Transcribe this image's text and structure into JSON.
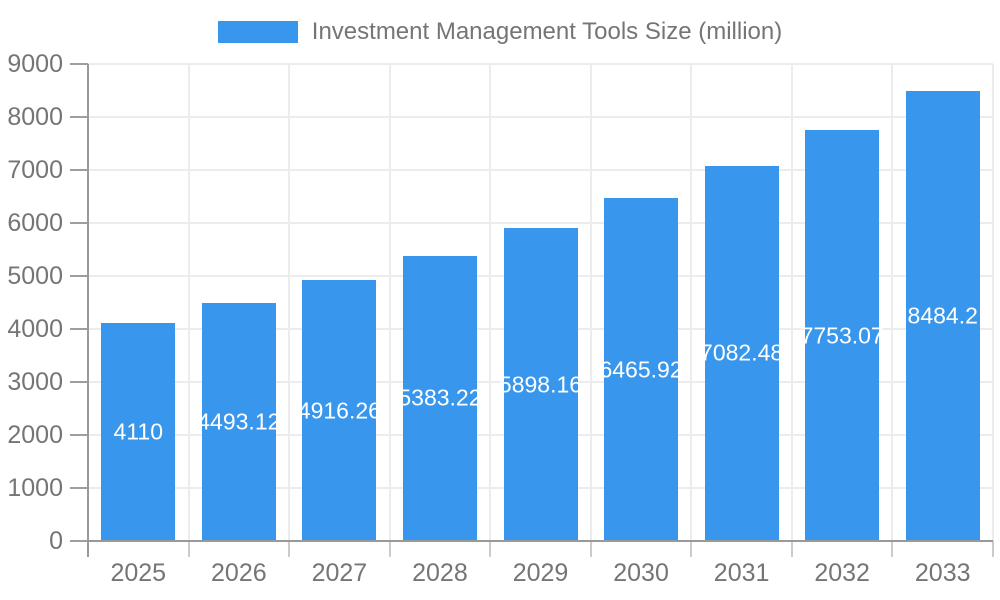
{
  "chart_data": {
    "type": "bar",
    "title": "",
    "legend": "Investment Management Tools Size (million)",
    "legend_position": "top",
    "categories": [
      "2025",
      "2026",
      "2027",
      "2028",
      "2029",
      "2030",
      "2031",
      "2032",
      "2033"
    ],
    "values": [
      4110,
      4493.12,
      4916.26,
      5383.22,
      5898.16,
      6465.92,
      7082.48,
      7753.07,
      8484.2
    ],
    "value_labels": [
      "4110",
      "4493.12",
      "4916.26",
      "5383.22",
      "5898.16",
      "6465.92",
      "7082.48",
      "7753.07",
      "8484.2"
    ],
    "xlabel": "",
    "ylabel": "",
    "ylim": [
      0,
      9000
    ],
    "yticks": [
      0,
      1000,
      2000,
      3000,
      4000,
      5000,
      6000,
      7000,
      8000,
      9000
    ],
    "grid": true,
    "value_label_position": "inside-center",
    "colors": {
      "bar": "#3897ec",
      "grid": "#ececec",
      "axis": "#999999",
      "y_tick": "#9e9e9e",
      "x_tick": "#cccccc",
      "tick_label_text": "#757575",
      "legend_text": "#757575",
      "value_label_text": "#ffffff",
      "background": "#ffffff"
    }
  }
}
